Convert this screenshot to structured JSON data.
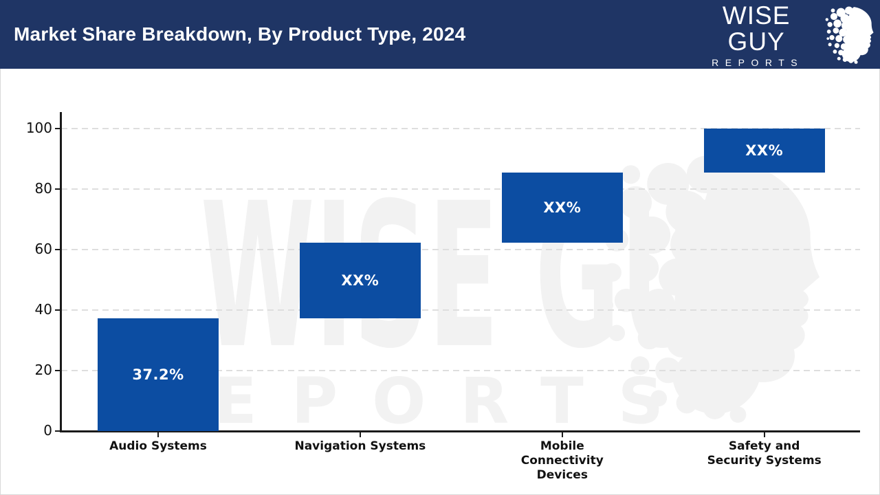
{
  "header": {
    "title": "Market Share Breakdown, By Product Type, 2024",
    "logo": {
      "line1": "WISE GUY",
      "line2": "REPORTS"
    }
  },
  "watermark": {
    "line1": "WISE GUY",
    "line2": "REPORTS"
  },
  "colors": {
    "header_bg": "#1f3565",
    "bar": "#0c4da2",
    "bar_label": "#ffffff",
    "gridline": "#dedede",
    "axis": "#1a1a1a",
    "watermark": "#f2f2f2"
  },
  "chart_data": {
    "type": "bar",
    "subtype": "waterfall",
    "title": "Market Share Breakdown, By Product Type, 2024",
    "xlabel": "",
    "ylabel": "",
    "yticks": [
      0,
      20,
      40,
      60,
      80,
      100
    ],
    "ylim": [
      0,
      105
    ],
    "grid": "horizontal-dashed",
    "legend": "none",
    "categories": [
      "Audio Systems",
      "Navigation Systems",
      "Mobile Connectivity Devices",
      "Safety and Security Systems"
    ],
    "segments": [
      {
        "category": "Audio Systems",
        "tick_lines": "Audio Systems",
        "start": 0,
        "end": 37.2,
        "label": "37.2%"
      },
      {
        "category": "Navigation Systems",
        "tick_lines": "Navigation Systems",
        "start": 37.2,
        "end": 62.3,
        "label": "XX%"
      },
      {
        "category": "Mobile Connectivity Devices",
        "tick_lines": "Mobile\nConnectivity\nDevices",
        "start": 62.3,
        "end": 85.3,
        "label": "XX%"
      },
      {
        "category": "Safety and Security Systems",
        "tick_lines": "Safety and\nSecurity Systems",
        "start": 85.3,
        "end": 100,
        "label": "XX%"
      }
    ]
  }
}
